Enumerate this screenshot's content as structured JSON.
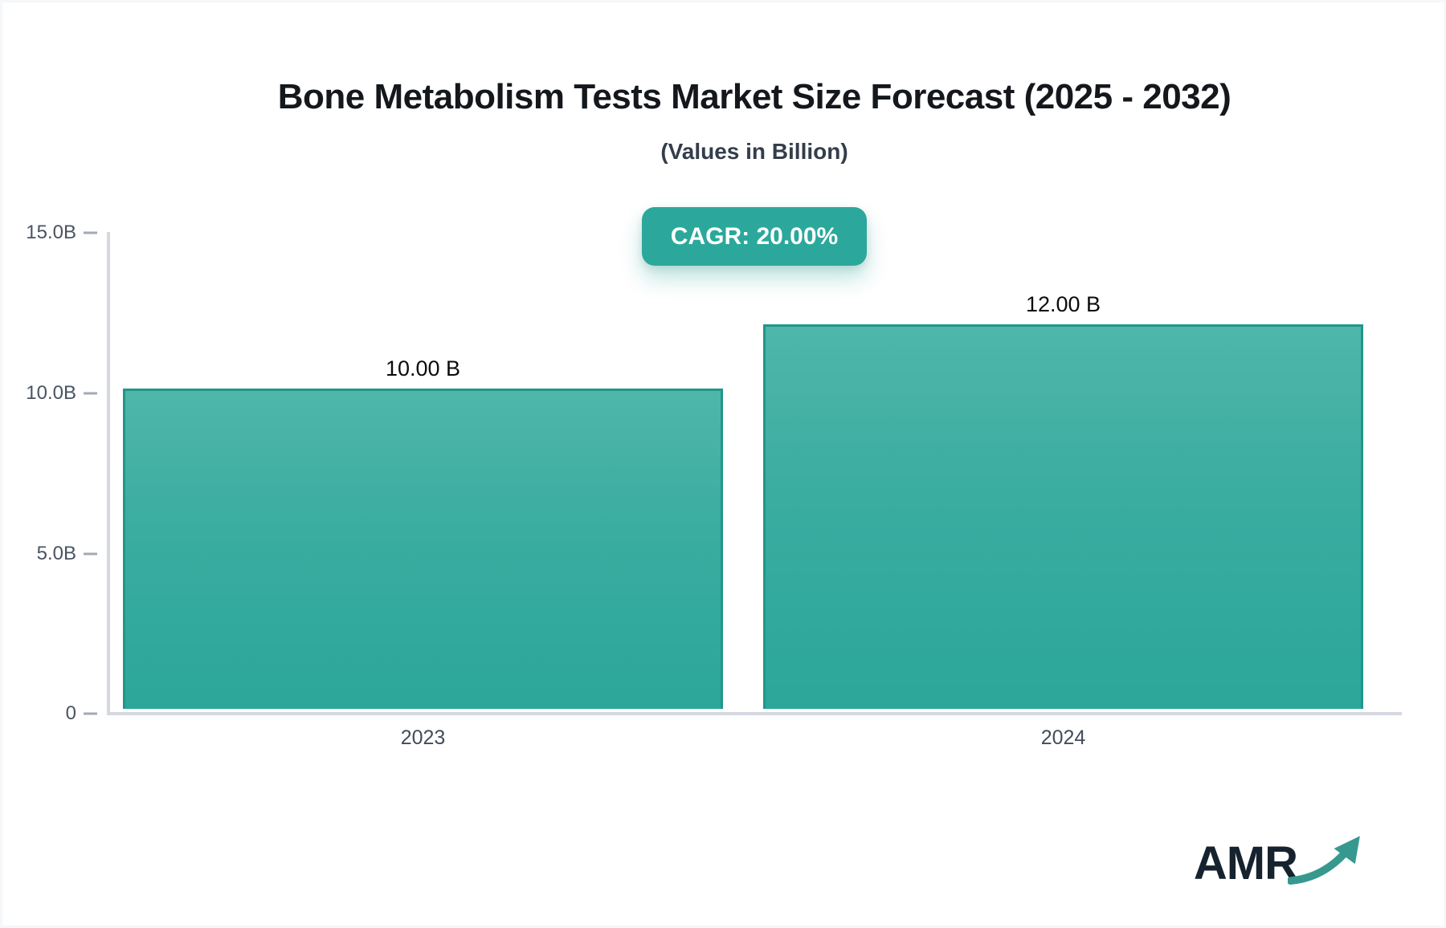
{
  "page": {
    "title": "Bone Metabolism Tests Market Size Forecast (2025 - 2032)",
    "subtitle": "(Values in Billion)",
    "cagr_badge": "CAGR: 20.00%",
    "logo_text": "AMR"
  },
  "chart_data": {
    "type": "bar",
    "title": "Bone Metabolism Tests Market Size Forecast (2025 - 2032)",
    "subtitle": "(Values in Billion)",
    "cagr_percent": 20.0,
    "categories": [
      "2023",
      "2024"
    ],
    "values": [
      10.0,
      12.0
    ],
    "bar_labels": [
      "10.00 B",
      "12.00 B"
    ],
    "unit": "Billion",
    "ylim": [
      0,
      15
    ],
    "ytick_values": [
      0,
      5,
      10,
      15
    ],
    "ytick_labels": [
      "0",
      "5.0B",
      "10.0B",
      "15.0B"
    ],
    "grid": false,
    "legend": false,
    "bar_color_top": "#4FB6AA",
    "bar_color_bottom": "#2BA79A",
    "accent_color": "#2BA89B"
  },
  "colors": {
    "accent_teal": "#2BA89B",
    "bar_border": "#239689",
    "axis_line": "#D4D8DF",
    "tick_text": "#4A5362",
    "title_text": "#14171C",
    "logo_text": "#16222E",
    "logo_arrow": "#37988F"
  }
}
